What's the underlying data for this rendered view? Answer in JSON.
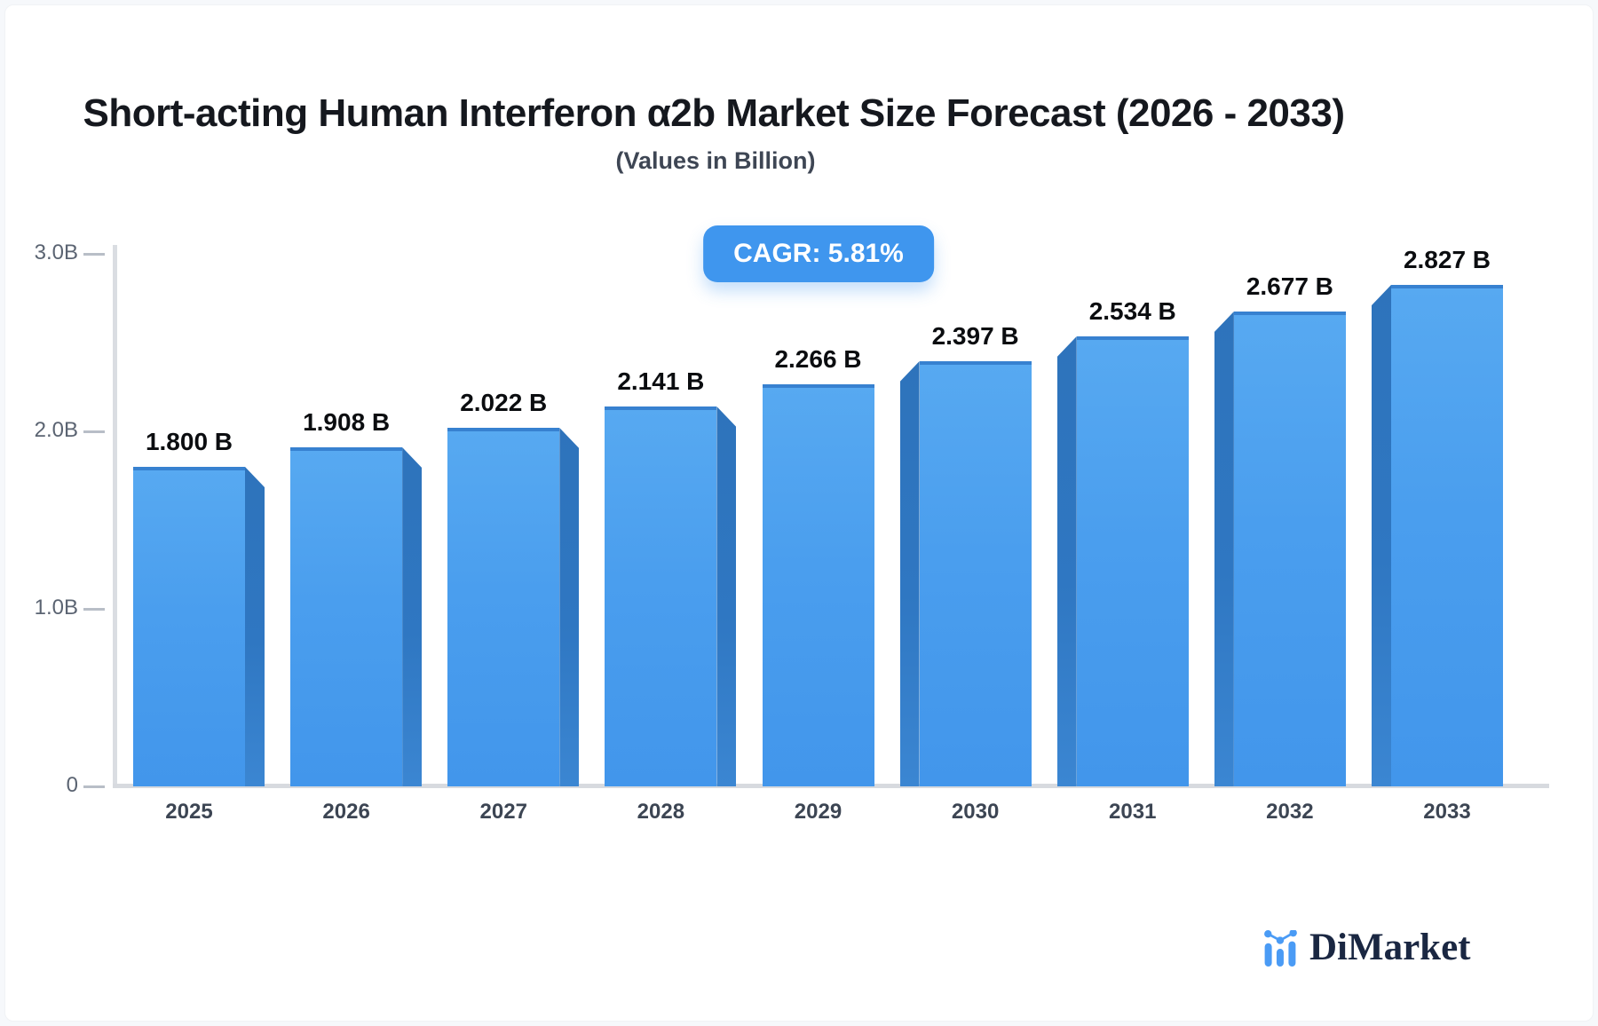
{
  "header": {
    "title": "Short-acting Human Interferon α2b Market Size Forecast (2026 - 2033)",
    "subtitle": "(Values in Billion)"
  },
  "badge": {
    "label": "CAGR: 5.81%",
    "background": "#3f96ee",
    "text_color": "#ffffff"
  },
  "chart_data": {
    "type": "bar",
    "title": "Short-acting Human Interferon α2b Market Size Forecast (2026 - 2033)",
    "subtitle": "(Values in Billion)",
    "categories": [
      "2025",
      "2026",
      "2027",
      "2028",
      "2029",
      "2030",
      "2031",
      "2032",
      "2033"
    ],
    "values": [
      1.8,
      1.908,
      2.022,
      2.141,
      2.266,
      2.397,
      2.534,
      2.677,
      2.827
    ],
    "value_labels": [
      "1.800 B",
      "1.908 B",
      "2.022 B",
      "2.141 B",
      "2.266 B",
      "2.397 B",
      "2.534 B",
      "2.677 B",
      "2.827 B"
    ],
    "cagr": "5.81%",
    "xlabel": "",
    "ylabel": "",
    "ylim": [
      0,
      3.0
    ],
    "y_ticks": [
      {
        "label": "3.0B",
        "value": 3.0
      },
      {
        "label": "2.0B",
        "value": 2.0
      },
      {
        "label": "1.0B",
        "value": 1.0
      },
      {
        "label": "0",
        "value": 0
      }
    ],
    "grid": false,
    "legend": false,
    "bar_color": "#4a9ff0",
    "bar_side_color": "#2f77c2",
    "style": "3d-extruded-perspective"
  },
  "logo": {
    "text": "DiMarket",
    "icon": "bar-line-chart-logo-icon",
    "icon_color": "#4a9bf5",
    "text_color": "#1a2742"
  }
}
